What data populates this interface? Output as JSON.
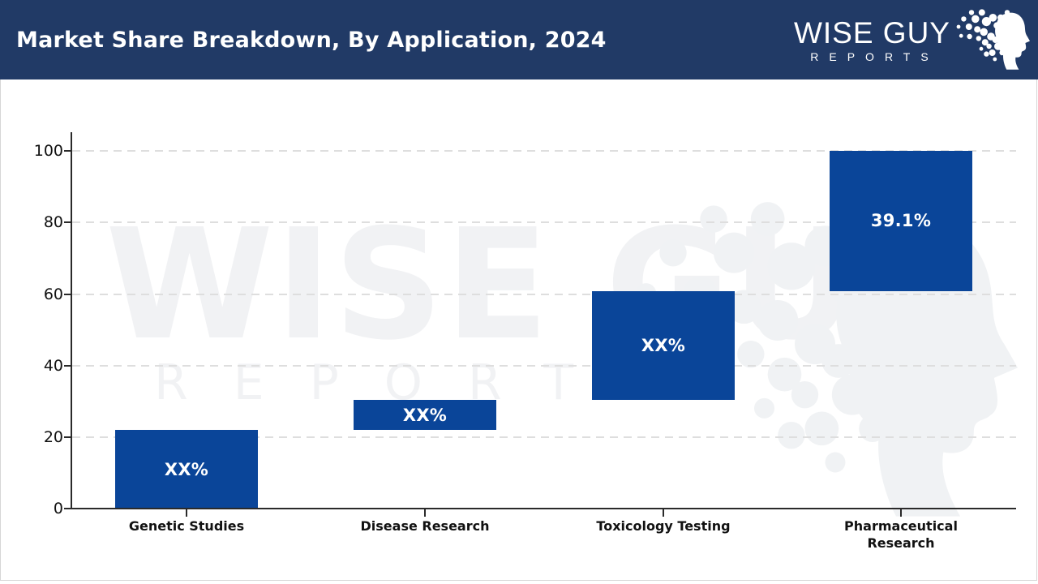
{
  "header": {
    "title": "Market Share Breakdown, By Application, 2024",
    "logo_line1": "WISE GUY",
    "logo_line2": "REPORTS"
  },
  "watermark": {
    "line1": "WISE GUY",
    "line2": "REPORTS"
  },
  "chart_data": {
    "type": "bar",
    "subtype": "waterfall",
    "title": "Market Share Breakdown, By Application, 2024",
    "categories": [
      "Genetic Studies",
      "Disease Research",
      "Toxicology Testing",
      "Pharmaceutical Research"
    ],
    "series": [
      {
        "name": "Market share by application (cumulative waterfall, %)",
        "segments": [
          {
            "category": "Genetic Studies",
            "start": 0,
            "end": 21.9,
            "value": 21.9,
            "label": "XX%"
          },
          {
            "category": "Disease Research",
            "start": 21.9,
            "end": 30.4,
            "value": 8.5,
            "label": "XX%"
          },
          {
            "category": "Toxicology Testing",
            "start": 30.4,
            "end": 60.9,
            "value": 30.5,
            "label": "XX%"
          },
          {
            "category": "Pharmaceutical Research",
            "start": 60.9,
            "end": 100,
            "value": 39.1,
            "label": "39.1%"
          }
        ]
      }
    ],
    "xlabel": "",
    "ylabel": "",
    "ylim": [
      0,
      100
    ],
    "yticks": [
      0,
      20,
      40,
      60,
      80,
      100
    ],
    "grid": "horizontal-dashed",
    "legend": "none",
    "bar_color": "#0a4599",
    "bar_label_color": "#ffffff",
    "header_color": "#213a66"
  }
}
